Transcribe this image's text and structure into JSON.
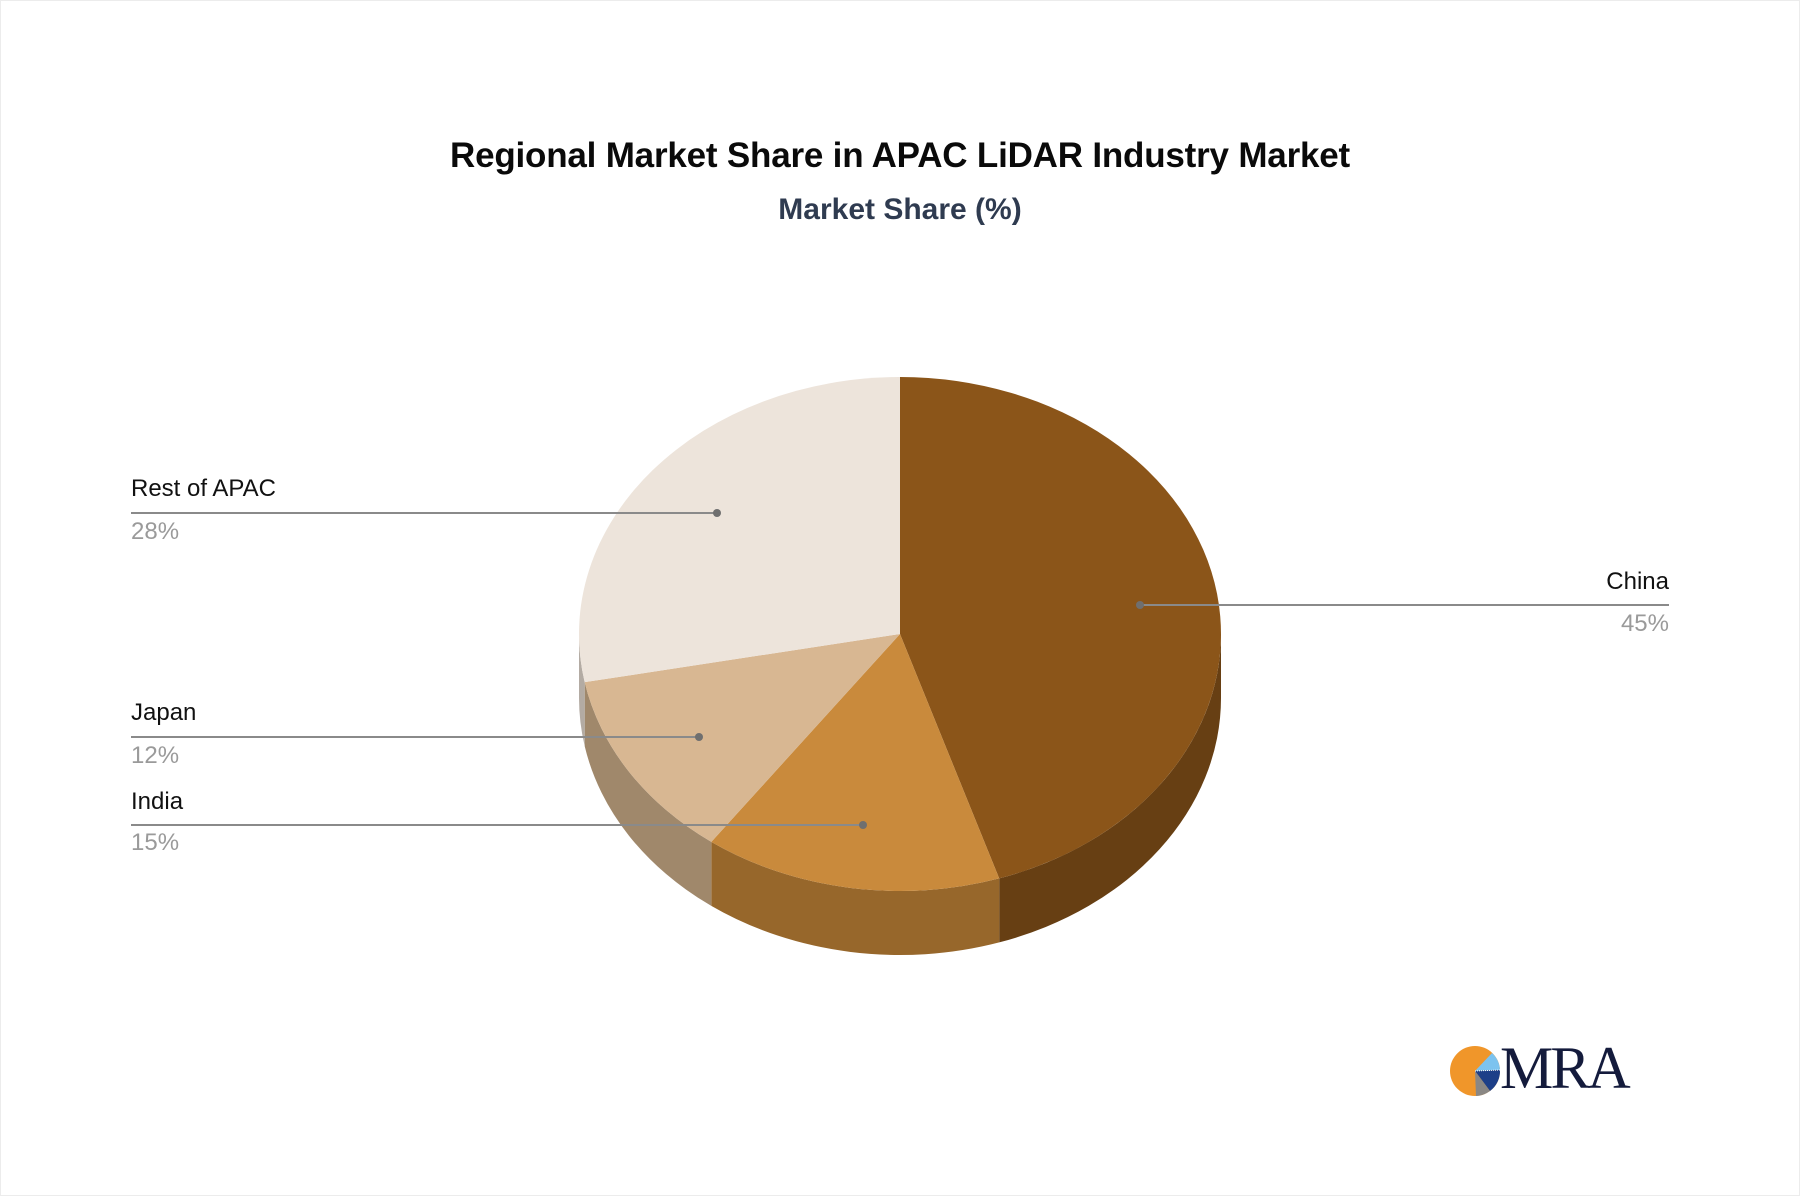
{
  "header": {
    "title": "Regional Market Share in APAC LiDAR Industry Market",
    "subtitle": "Market Share (%)"
  },
  "labels": {
    "china": {
      "name": "China",
      "pct": "45%"
    },
    "india": {
      "name": "India",
      "pct": "15%"
    },
    "japan": {
      "name": "Japan",
      "pct": "12%"
    },
    "rest": {
      "name": "Rest of APAC",
      "pct": "28%"
    }
  },
  "logo": {
    "text": "MRA",
    "icon": "pie-logo-icon"
  },
  "colors": {
    "china_top": "#8b5519",
    "china_side": "#673f13",
    "india_top": "#c98a3c",
    "india_side": "#97672b",
    "japan_top": "#d8b792",
    "japan_side": "#a0886b",
    "rest_top": "#ede4db",
    "rest_side": "#b3aba3",
    "leader_line": "#8a8a8a",
    "leader_dot": "#6f6f6f"
  },
  "chart_data": {
    "type": "pie",
    "style": "3d",
    "title": "Regional Market Share in APAC LiDAR Industry Market",
    "subtitle": "Market Share (%)",
    "categories": [
      "China",
      "India",
      "Japan",
      "Rest of APAC"
    ],
    "values": [
      45,
      15,
      12,
      28
    ],
    "unit": "%",
    "start_angle": "12 o'clock",
    "direction": "clockwise",
    "legend": "none (leader-line labels)",
    "colors": [
      "#8b5519",
      "#c98a3c",
      "#d8b792",
      "#ede4db"
    ]
  }
}
